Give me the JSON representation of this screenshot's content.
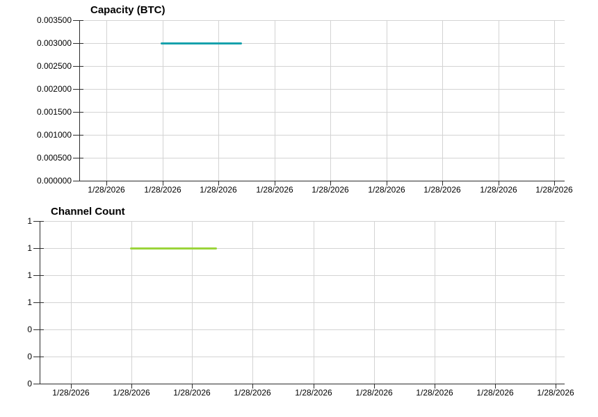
{
  "page": {
    "background": "#FFFFFF"
  },
  "colors": {
    "grid": "#D3D3D3",
    "axis": "#2B2B2B",
    "text": "#000000",
    "capacity_line": "#17A1AC",
    "channel_line": "#9BD43B"
  },
  "chart_data": [
    {
      "type": "line",
      "title": "Capacity (BTC)",
      "xlabel": "",
      "ylabel": "",
      "ylim": [
        0,
        0.0035
      ],
      "grid": true,
      "legend": "none",
      "y_tick_values": [
        0.0035,
        0.003,
        0.0025,
        0.002,
        0.0015,
        0.001,
        0.0005,
        0
      ],
      "y_tick_labels": [
        "0.003500",
        "0.003000",
        "0.002500",
        "0.002000",
        "0.001500",
        "0.001000",
        "0.000500",
        "0.000000"
      ],
      "x_tick_labels": [
        "1/28/2026",
        "1/28/2026",
        "1/28/2026",
        "1/28/2026",
        "1/28/2026",
        "1/28/2026",
        "1/28/2026",
        "1/28/2026",
        "1/28/2026"
      ],
      "series": [
        {
          "name": "Capacity (BTC)",
          "color": "#17A1AC",
          "y_value": 0.003,
          "y_tick_index": 1,
          "x_span_ticks": [
            0.97,
            2.42
          ],
          "date": "1/28/2026"
        }
      ]
    },
    {
      "type": "line",
      "title": "Channel Count",
      "xlabel": "",
      "ylabel": "",
      "ylim": [
        0,
        1.2
      ],
      "grid": true,
      "legend": "none",
      "y_tick_values": [
        1.2,
        1.0,
        0.8,
        0.6,
        0.4,
        0.2,
        0
      ],
      "y_tick_labels": [
        "1",
        "1",
        "1",
        "1",
        "0",
        "0",
        "0"
      ],
      "x_tick_labels": [
        "1/28/2026",
        "1/28/2026",
        "1/28/2026",
        "1/28/2026",
        "1/28/2026",
        "1/28/2026",
        "1/28/2026",
        "1/28/2026",
        "1/28/2026"
      ],
      "series": [
        {
          "name": "Channel Count",
          "color": "#9BD43B",
          "y_value": 1,
          "y_tick_index": 1,
          "x_span_ticks": [
            0.98,
            2.41
          ],
          "date": "1/28/2026"
        }
      ]
    }
  ]
}
